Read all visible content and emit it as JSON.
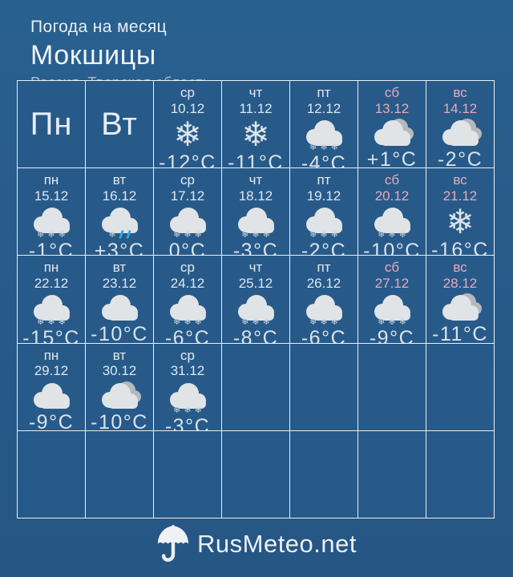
{
  "page": {
    "title": "Погода на месяц",
    "city": "Мокшицы",
    "region": "Россия, Тверская область"
  },
  "footer": {
    "brand": "RusMeteo.net",
    "icon": "umbrella-icon"
  },
  "colors": {
    "background": "#275a89",
    "grid_line": "#e9eef2",
    "text_primary": "#e6edf3",
    "text_secondary": "#a9bcca",
    "weekend_pink": "#e9a9ba",
    "temp_text": "#d9e2ea",
    "rain_blue": "#36a3e3",
    "cloud_light": "#e0e4e7",
    "cloud_dark": "#b4b9be"
  },
  "calendar": {
    "rows": [
      {
        "cells": [
          {
            "type": "dayname",
            "label": "Пн"
          },
          {
            "type": "dayname",
            "label": "Вт"
          },
          {
            "type": "forecast",
            "day": "ср",
            "date": "10.12",
            "icon": "snowflake",
            "temp": "-12°C",
            "weekend": false
          },
          {
            "type": "forecast",
            "day": "чт",
            "date": "11.12",
            "icon": "snowflake",
            "temp": "-11°C",
            "weekend": false
          },
          {
            "type": "forecast",
            "day": "пт",
            "date": "12.12",
            "icon": "cloud-snow",
            "temp": "-4°C",
            "weekend": false
          },
          {
            "type": "forecast",
            "day": "сб",
            "date": "13.12",
            "icon": "cloud-overcast",
            "temp": "+1°C",
            "weekend": true
          },
          {
            "type": "forecast",
            "day": "вс",
            "date": "14.12",
            "icon": "cloud-overcast",
            "temp": "-2°C",
            "weekend": true
          }
        ]
      },
      {
        "cells": [
          {
            "type": "forecast",
            "day": "пн",
            "date": "15.12",
            "icon": "cloud-snow",
            "temp": "-1°C",
            "weekend": false
          },
          {
            "type": "forecast",
            "day": "вт",
            "date": "16.12",
            "icon": "cloud-sleet",
            "temp": "+3°C",
            "weekend": false
          },
          {
            "type": "forecast",
            "day": "ср",
            "date": "17.12",
            "icon": "cloud-snow",
            "temp": "0°C",
            "weekend": false
          },
          {
            "type": "forecast",
            "day": "чт",
            "date": "18.12",
            "icon": "cloud-snow",
            "temp": "-3°C",
            "weekend": false
          },
          {
            "type": "forecast",
            "day": "пт",
            "date": "19.12",
            "icon": "cloud-snow",
            "temp": "-2°C",
            "weekend": false
          },
          {
            "type": "forecast",
            "day": "сб",
            "date": "20.12",
            "icon": "cloud-snow",
            "temp": "-10°C",
            "weekend": true
          },
          {
            "type": "forecast",
            "day": "вс",
            "date": "21.12",
            "icon": "snowflake",
            "temp": "-16°C",
            "weekend": true
          }
        ]
      },
      {
        "cells": [
          {
            "type": "forecast",
            "day": "пн",
            "date": "22.12",
            "icon": "cloud-snow",
            "temp": "-15°C",
            "weekend": false
          },
          {
            "type": "forecast",
            "day": "вт",
            "date": "23.12",
            "icon": "cloud",
            "temp": "-10°C",
            "weekend": false
          },
          {
            "type": "forecast",
            "day": "ср",
            "date": "24.12",
            "icon": "cloud-snow",
            "temp": "-6°C",
            "weekend": false
          },
          {
            "type": "forecast",
            "day": "чт",
            "date": "25.12",
            "icon": "cloud-snow",
            "temp": "-8°C",
            "weekend": false
          },
          {
            "type": "forecast",
            "day": "пт",
            "date": "26.12",
            "icon": "cloud-snow",
            "temp": "-6°C",
            "weekend": false
          },
          {
            "type": "forecast",
            "day": "сб",
            "date": "27.12",
            "icon": "cloud-snow",
            "temp": "-9°C",
            "weekend": true
          },
          {
            "type": "forecast",
            "day": "вс",
            "date": "28.12",
            "icon": "cloud-overcast",
            "temp": "-11°C",
            "weekend": true
          }
        ]
      },
      {
        "cells": [
          {
            "type": "forecast",
            "day": "пн",
            "date": "29.12",
            "icon": "cloud",
            "temp": "-9°C",
            "weekend": false
          },
          {
            "type": "forecast",
            "day": "вт",
            "date": "30.12",
            "icon": "cloud-overcast",
            "temp": "-10°C",
            "weekend": false
          },
          {
            "type": "forecast",
            "day": "ср",
            "date": "31.12",
            "icon": "cloud-snow",
            "temp": "-3°C",
            "weekend": false
          },
          {
            "type": "empty"
          },
          {
            "type": "empty"
          },
          {
            "type": "empty"
          },
          {
            "type": "empty"
          }
        ]
      },
      {
        "cells": [
          {
            "type": "empty"
          },
          {
            "type": "empty"
          },
          {
            "type": "empty"
          },
          {
            "type": "empty"
          },
          {
            "type": "empty"
          },
          {
            "type": "empty"
          },
          {
            "type": "empty"
          }
        ]
      }
    ]
  }
}
